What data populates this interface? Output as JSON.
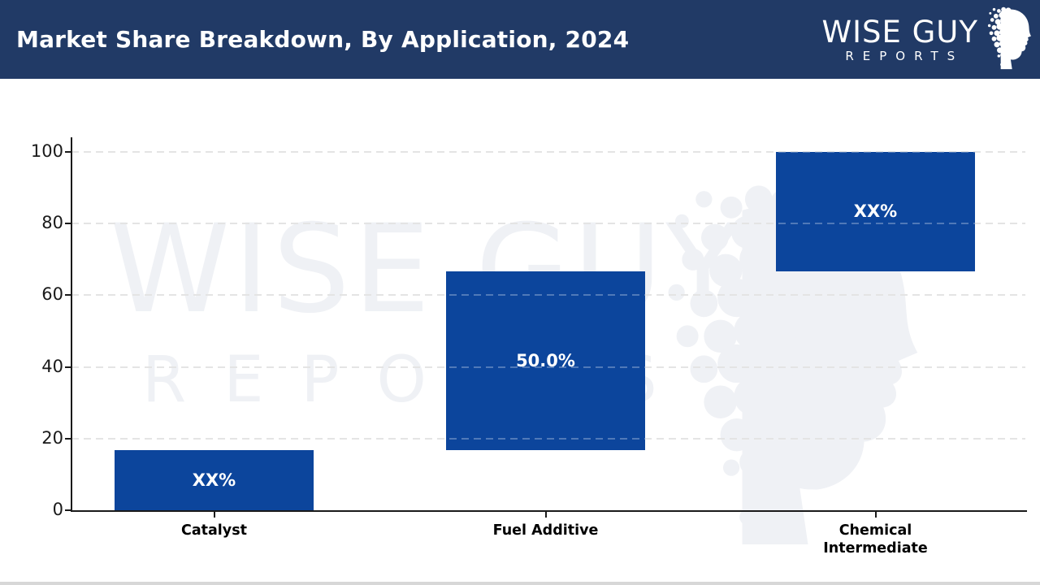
{
  "header": {
    "title": "Market Share Breakdown, By Application, 2024",
    "logo": {
      "line1": "WISE GUY",
      "line2": "REPORTS",
      "icon": "dotted-head-profile-icon"
    }
  },
  "watermark": {
    "line1": "WISE GUY",
    "line2": "REPORTS",
    "icon": "dotted-head-profile-icon"
  },
  "chart_data": {
    "type": "bar",
    "subtype": "floating-waterfall",
    "title": "Market Share Breakdown, By Application, 2024",
    "categories": [
      "Catalyst",
      "Fuel Additive",
      "Chemical Intermediate"
    ],
    "series": [
      {
        "name": "Market Share",
        "segments": [
          {
            "category": "Catalyst",
            "from": 0,
            "to": 16.7,
            "label": "XX%"
          },
          {
            "category": "Fuel Additive",
            "from": 16.7,
            "to": 66.7,
            "label": "50.0%"
          },
          {
            "category": "Chemical Intermediate",
            "from": 66.7,
            "to": 100,
            "label": "XX%"
          }
        ]
      }
    ],
    "yticks": [
      0,
      20,
      40,
      60,
      80,
      100
    ],
    "ylim": [
      0,
      105
    ],
    "xlabel": "",
    "ylabel": "",
    "grid": "horizontal-dashed",
    "legend": "none"
  },
  "colors": {
    "header_bg": "#213a66",
    "bar_fill": "#0c459c",
    "bar_label": "#ffffff",
    "grid": "#d9d9d9",
    "axis": "#1a1a1a",
    "watermark": "#eff1f5",
    "footer_line": "#d7d7d7"
  }
}
